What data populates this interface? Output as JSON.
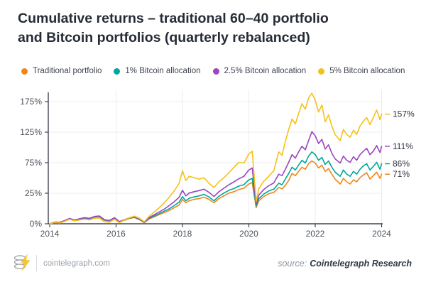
{
  "header": {
    "title_line1": "Cumulative returns – traditional 60–40 portfolio",
    "title_line2": "and Bitcoin portfolios (quarterly rebalanced)"
  },
  "chart_data": {
    "type": "line",
    "title": "Cumulative returns – traditional 60–40 portfolio and Bitcoin portfolios (quarterly rebalanced)",
    "grid": "on",
    "legend_position": "top",
    "x_axis": {
      "ticks": [
        "2014",
        "2016",
        "2018",
        "2020",
        "2022",
        "2024"
      ],
      "range": [
        2014,
        2024
      ]
    },
    "y_axis": {
      "ticks": [
        "0%",
        "25%",
        "75%",
        "125%",
        "175%"
      ],
      "unit": "%",
      "line_scale_range": [
        0,
        175
      ]
    },
    "x_years": [
      2014.0,
      2014.15,
      2014.3,
      2014.45,
      2014.6,
      2014.75,
      2014.9,
      2015.05,
      2015.2,
      2015.35,
      2015.5,
      2015.65,
      2015.8,
      2015.95,
      2016.1,
      2016.25,
      2016.4,
      2016.55,
      2016.7,
      2016.85,
      2017.0,
      2017.15,
      2017.3,
      2017.45,
      2017.6,
      2017.75,
      2017.9,
      2018.0,
      2018.1,
      2018.2,
      2018.35,
      2018.5,
      2018.65,
      2018.8,
      2018.95,
      2019.1,
      2019.25,
      2019.4,
      2019.55,
      2019.7,
      2019.85,
      2020.0,
      2020.1,
      2020.22,
      2020.3,
      2020.45,
      2020.6,
      2020.75,
      2020.9,
      2021.0,
      2021.1,
      2021.2,
      2021.3,
      2021.4,
      2021.5,
      2021.6,
      2021.7,
      2021.8,
      2021.9,
      2022.0,
      2022.1,
      2022.2,
      2022.3,
      2022.4,
      2022.5,
      2022.6,
      2022.75,
      2022.85,
      2022.95,
      2023.05,
      2023.15,
      2023.25,
      2023.35,
      2023.45,
      2023.55,
      2023.65,
      2023.75,
      2023.85,
      2023.95,
      2024.0
    ],
    "series": [
      {
        "id": "traditional-portfolio",
        "name": "Traditional portfolio",
        "color": "#F0861A",
        "end_label": "71%",
        "end_value": 71,
        "values": [
          0,
          2,
          1.5,
          4,
          7,
          5,
          6.5,
          8,
          7,
          9.5,
          10,
          5,
          4,
          8,
          2.5,
          5,
          7.5,
          9,
          6,
          1.5,
          7,
          10,
          13,
          16,
          19,
          23,
          27,
          35,
          30,
          33,
          35,
          36,
          38,
          35,
          30,
          36,
          40,
          44,
          46,
          49,
          51,
          57,
          59,
          23,
          33,
          39,
          43,
          45,
          52,
          50,
          55,
          62,
          72,
          69,
          75,
          81,
          78,
          86,
          90,
          87,
          80,
          84,
          75,
          79,
          71,
          64,
          57,
          65,
          60,
          57,
          63,
          60,
          66,
          70,
          73,
          64,
          69,
          74,
          65,
          71
        ]
      },
      {
        "id": "1pct-bitcoin-allocation",
        "name": "1% Bitcoin allocation",
        "color": "#00A79D",
        "end_label": "86%",
        "end_value": 86,
        "values": [
          0,
          2.2,
          1.8,
          4.3,
          7.3,
          5.2,
          6.8,
          8.3,
          7.4,
          10,
          10.6,
          5.4,
          4.4,
          8.4,
          2.9,
          5.4,
          8,
          9.6,
          6.5,
          2,
          8,
          11.2,
          14.5,
          18,
          21.5,
          26,
          31,
          39,
          33,
          36.5,
          38.5,
          40,
          42,
          38.5,
          33,
          39.5,
          44,
          48,
          50.5,
          54,
          56,
          63,
          65,
          25.5,
          36,
          42.5,
          47,
          49.5,
          58,
          56,
          64,
          72,
          81,
          77,
          84,
          91,
          87,
          97,
          103,
          99,
          91,
          95,
          85,
          90,
          81,
          74,
          68,
          77,
          71,
          68,
          75,
          71,
          78,
          83,
          86,
          77,
          82,
          88,
          78,
          86
        ]
      },
      {
        "id": "2-5pct-bitcoin-allocation",
        "name": "2.5% Bitcoin allocation",
        "color": "#9D44C0",
        "end_label": "111%",
        "end_value": 111,
        "values": [
          0,
          2.4,
          2,
          4.6,
          7.6,
          5.5,
          7.2,
          8.7,
          7.8,
          10.5,
          11.2,
          5.8,
          4.8,
          8.8,
          3.2,
          5.8,
          8.5,
          10.2,
          7,
          2.3,
          9,
          13,
          17,
          21,
          26,
          31.5,
          38,
          48,
          40,
          44,
          46,
          47.5,
          49.5,
          45,
          39,
          46,
          51,
          56,
          60,
          64.5,
          68,
          77,
          80,
          28.5,
          41,
          49,
          54.5,
          58.5,
          71,
          69,
          78,
          88,
          99,
          94,
          103,
          111,
          106,
          119,
          132,
          126,
          115,
          121,
          107,
          113,
          101,
          93,
          87,
          97,
          91,
          88,
          96,
          91,
          99,
          104,
          108,
          99,
          104,
          112,
          102,
          111
        ]
      },
      {
        "id": "5pct-bitcoin-allocation",
        "name": "5% Bitcoin allocation",
        "color": "#F5C118",
        "end_label": "157%",
        "end_value": 157,
        "values": [
          0,
          1.8,
          1,
          3.5,
          6.5,
          4.2,
          5.5,
          6.5,
          5.5,
          8,
          8,
          3,
          2,
          6.5,
          1.5,
          5.5,
          8.5,
          11,
          8,
          3,
          11,
          17,
          23,
          30,
          38,
          47,
          58,
          76,
          62,
          68,
          66,
          64,
          66,
          58,
          52,
          60,
          66,
          73,
          81,
          88,
          87,
          100,
          104,
          32,
          50,
          61,
          68,
          76,
          103,
          98,
          118,
          135,
          150,
          143,
          158,
          172,
          164,
          180,
          187,
          177,
          160,
          170,
          146,
          156,
          140,
          128,
          119,
          135,
          128,
          124,
          134,
          128,
          140,
          147,
          152,
          142,
          152,
          163,
          149,
          157
        ]
      }
    ],
    "colors": {
      "grid": "#EBECF0",
      "axis": "#40454F",
      "tick_text": "#4C515B",
      "end_label_text": "#2F3440"
    }
  },
  "footer": {
    "site": "cointelegraph.com",
    "source_prefix": "source:",
    "source_name": "Cointelegraph Research"
  }
}
